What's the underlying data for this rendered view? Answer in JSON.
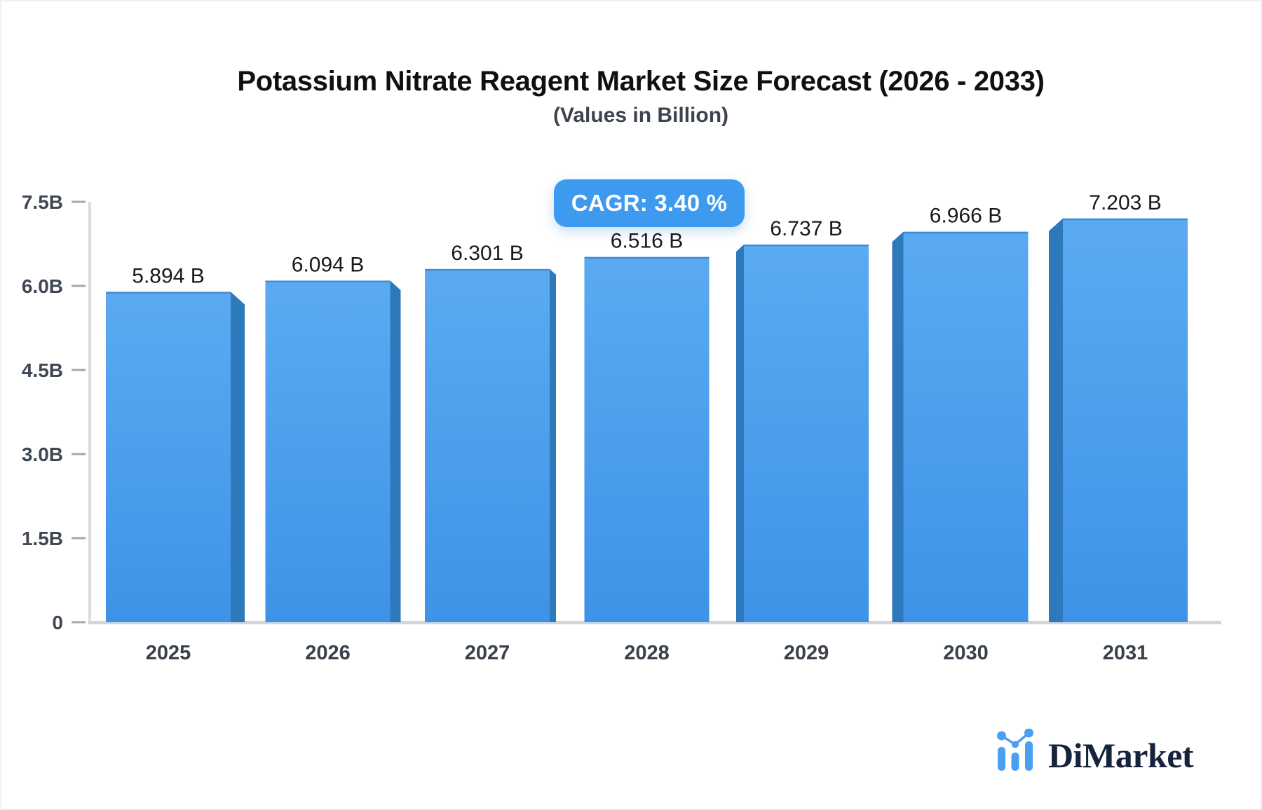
{
  "header": {
    "title": "Potassium Nitrate Reagent Market Size Forecast (2026 - 2033)",
    "subtitle": "(Values in Billion)",
    "cagr_label": "CAGR: 3.40 %"
  },
  "footer": {
    "brand": "DiMarket",
    "brand_icon": "bar-line-chart-icon"
  },
  "chart_data": {
    "type": "bar",
    "title": "Potassium Nitrate Reagent Market Size Forecast (2026 - 2033)",
    "subtitle": "(Values in Billion)",
    "xlabel": "",
    "ylabel": "",
    "unit": "Billion",
    "cagr": "3.40 %",
    "categories": [
      "2025",
      "2026",
      "2027",
      "2028",
      "2029",
      "2030",
      "2031"
    ],
    "values": [
      5.894,
      6.094,
      6.301,
      6.516,
      6.737,
      6.966,
      7.203
    ],
    "value_labels": [
      "5.894 B",
      "6.094 B",
      "6.301 B",
      "6.516 B",
      "6.737 B",
      "6.966 B",
      "7.203 B"
    ],
    "ylim": [
      0,
      7.5
    ],
    "yticks": [
      {
        "value": 0,
        "label": "0"
      },
      {
        "value": 1.5,
        "label": "1.5B"
      },
      {
        "value": 3.0,
        "label": "3.0B"
      },
      {
        "value": 4.5,
        "label": "4.5B"
      },
      {
        "value": 6.0,
        "label": "6.0B"
      },
      {
        "value": 7.5,
        "label": "7.5B"
      }
    ],
    "grid": false,
    "legend": false,
    "bar_style": "3d-perspective",
    "colors": {
      "bar_face_top": "#5baaf1",
      "bar_face_bottom": "#3e93e8",
      "bar_side": "#2e78bc",
      "bar_top_edge": "#3f8cd8",
      "axis_line": "#d8dbe0",
      "baseline": "#d2d6db",
      "tick_dash": "#a3a9b1",
      "tick_text": "#3f4753",
      "x_text": "#3a414b",
      "value_text": "#17191c",
      "badge_bg": "#3d9aef",
      "badge_text": "#ffffff",
      "logo_blue": "#4aa0f0",
      "logo_navy": "#16233c"
    }
  }
}
